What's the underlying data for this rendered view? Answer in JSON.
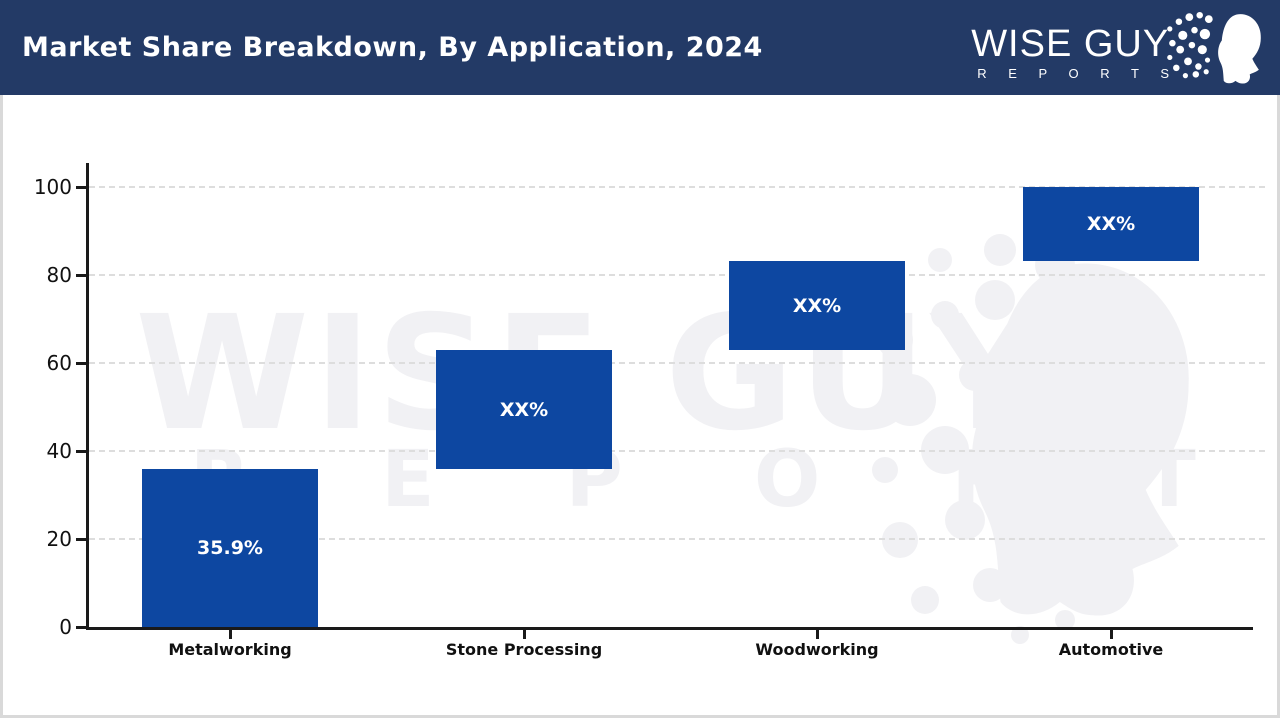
{
  "header": {
    "title": "Market Share Breakdown, By Application, 2024",
    "logo": {
      "name_line": "WISE GUY",
      "reports_line": "R E P O R T S"
    }
  },
  "watermark": {
    "name_line": "WISE GUY",
    "reports_line": "R E P O R T S"
  },
  "chart_data": {
    "type": "bar",
    "subtype": "waterfall",
    "title": "Market Share Breakdown, By Application, 2024",
    "categories": [
      "Metalworking",
      "Stone Processing",
      "Woodworking",
      "Automotive"
    ],
    "segments": [
      {
        "category": "Metalworking",
        "start": 0,
        "end": 35.9,
        "label": "35.9%"
      },
      {
        "category": "Stone Processing",
        "start": 35.9,
        "end": 63.0,
        "label": "XX%"
      },
      {
        "category": "Woodworking",
        "start": 63.0,
        "end": 83.2,
        "label": "XX%"
      },
      {
        "category": "Automotive",
        "start": 83.2,
        "end": 100.0,
        "label": "XX%"
      }
    ],
    "ylim": [
      0,
      100
    ],
    "yticks": [
      0,
      20,
      40,
      60,
      80,
      100
    ],
    "xlabel": "",
    "ylabel": "",
    "grid": "horizontal-dashed",
    "legend": "none",
    "colors": {
      "bar": "#0D47A1",
      "bar_label": "#FFFFFF",
      "axis": "#1A1A1A",
      "grid": "#DDDDDD",
      "tick_label": "#111111",
      "category_label": "#111111",
      "header_bg": "#233A66",
      "header_text": "#FFFFFF",
      "watermark": "#F1F1F4",
      "frame_border": "#D9D9D9",
      "background": "#FFFFFF"
    }
  }
}
